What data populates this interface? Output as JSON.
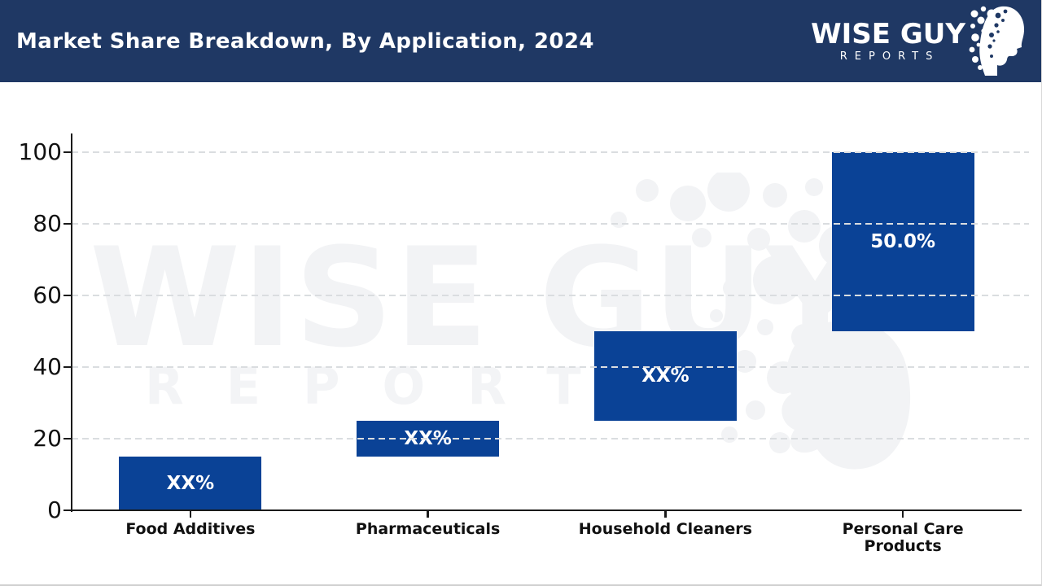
{
  "header": {
    "title": "Market Share Breakdown, By Application, 2024",
    "bg_color": "#1f3864",
    "logo": {
      "line1": "WISE GUY",
      "line2": "REPORTS"
    }
  },
  "watermark": {
    "line1": "WISE GUY",
    "line2": "REPORTS"
  },
  "chart_data": {
    "type": "bar",
    "variant": "floating-range-bars",
    "title": "Market Share Breakdown, By Application, 2024",
    "categories": [
      "Food Additives",
      "Pharmaceuticals",
      "Household Cleaners",
      "Personal Care Products"
    ],
    "bars": [
      {
        "category": "Food Additives",
        "start": 0,
        "end": 15,
        "size": 15,
        "label": "XX%"
      },
      {
        "category": "Pharmaceuticals",
        "start": 15,
        "end": 25,
        "size": 10,
        "label": "XX%"
      },
      {
        "category": "Household Cleaners",
        "start": 25,
        "end": 50,
        "size": 25,
        "label": "XX%"
      },
      {
        "category": "Personal Care Products",
        "start": 50,
        "end": 100,
        "size": 50,
        "label": "50.0%"
      }
    ],
    "xlabel": "",
    "ylabel": "",
    "ylim": [
      0,
      100
    ],
    "yticks": [
      0,
      20,
      40,
      60,
      80,
      100
    ],
    "grid": {
      "axis": "y",
      "style": "dashed",
      "color": "#dadde0",
      "on_top_of_bars": true
    },
    "legend": null,
    "bar_color": "#0a4296",
    "bar_label_color": "#ffffff",
    "axis_color": "#1a1a1a"
  }
}
